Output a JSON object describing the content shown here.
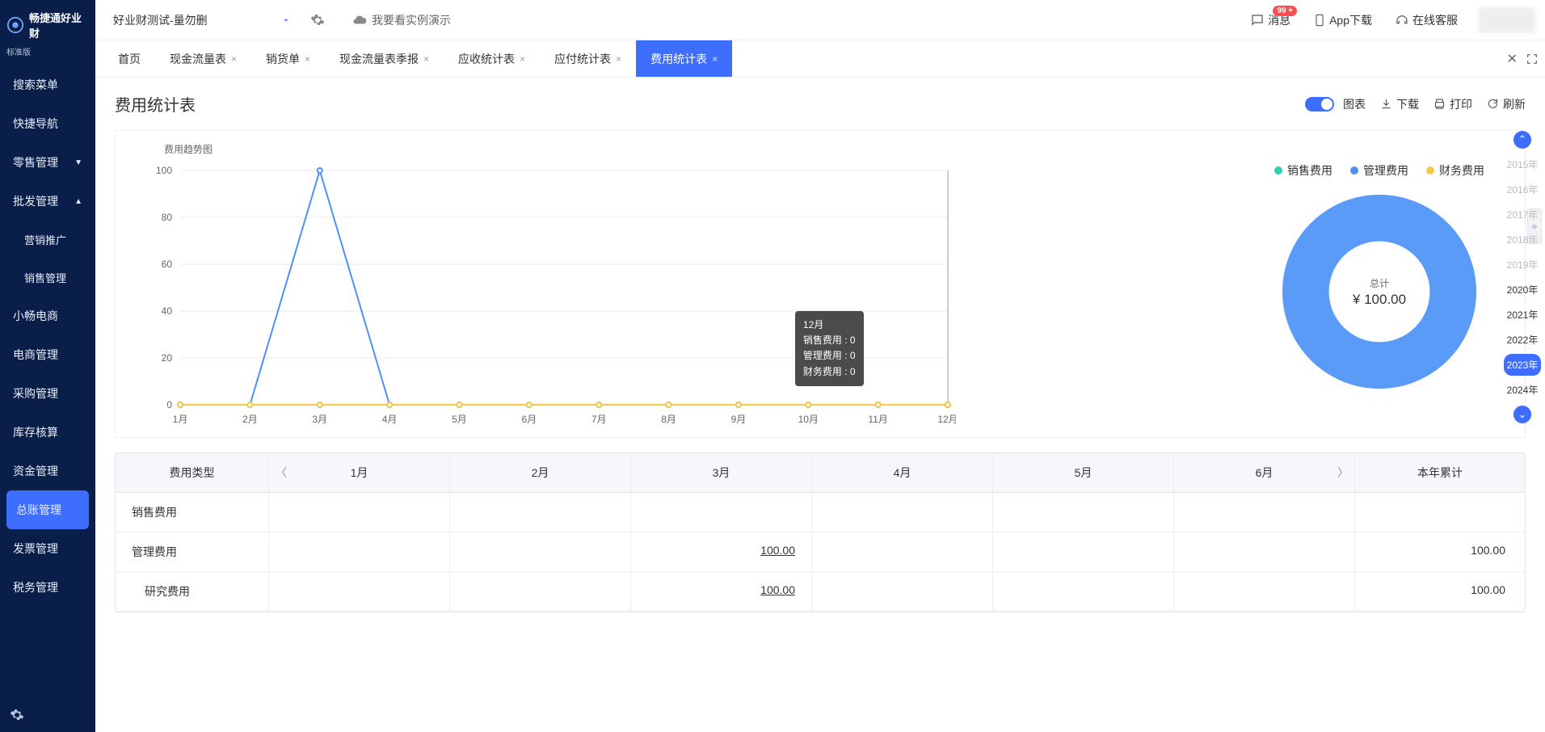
{
  "brand": {
    "name": "畅捷通好业财",
    "edition": "标准版"
  },
  "sidebar": {
    "items": [
      {
        "label": "搜索菜单"
      },
      {
        "label": "快捷导航"
      },
      {
        "label": "零售管理",
        "arrow": "▼"
      },
      {
        "label": "批发管理",
        "arrow": "▲"
      },
      {
        "label": "营销推广",
        "indent": true
      },
      {
        "label": "销售管理",
        "indent": true
      },
      {
        "label": "小畅电商"
      },
      {
        "label": "电商管理"
      },
      {
        "label": "采购管理"
      },
      {
        "label": "库存核算"
      },
      {
        "label": "资金管理"
      },
      {
        "label": "总账管理",
        "active": true
      },
      {
        "label": "发票管理"
      },
      {
        "label": "税务管理"
      }
    ]
  },
  "topbar": {
    "org": "好业财测试-量勿删",
    "demo": "我要看实例演示",
    "actions": {
      "msg": "消息",
      "msg_badge": "99 +",
      "app": "App下载",
      "service": "在线客服"
    }
  },
  "tabs": [
    {
      "label": "首页",
      "closable": false
    },
    {
      "label": "现金流量表",
      "closable": true
    },
    {
      "label": "销货单",
      "closable": true
    },
    {
      "label": "现金流量表季报",
      "closable": true
    },
    {
      "label": "应收统计表",
      "closable": true
    },
    {
      "label": "应付统计表",
      "closable": true
    },
    {
      "label": "费用统计表",
      "closable": true,
      "active": true
    }
  ],
  "page": {
    "title": "费用统计表",
    "actions": {
      "chart": "图表",
      "download": "下载",
      "print": "打印",
      "refresh": "刷新"
    }
  },
  "chart": {
    "title": "费用趋势图",
    "legend": [
      {
        "label": "销售费用",
        "color": "#2ecfb0"
      },
      {
        "label": "管理费用",
        "color": "#4f8ff7"
      },
      {
        "label": "财务费用",
        "color": "#f7c948"
      }
    ],
    "x_labels": [
      "1月",
      "2月",
      "3月",
      "4月",
      "5月",
      "6月",
      "7月",
      "8月",
      "9月",
      "10月",
      "11月",
      "12月"
    ],
    "y_ticks": [
      0,
      20,
      40,
      60,
      80,
      100
    ],
    "ylim": [
      0,
      100
    ],
    "series": {
      "sales": [
        0,
        0,
        0,
        0,
        0,
        0,
        0,
        0,
        0,
        0,
        0,
        0
      ],
      "admin": [
        0,
        0,
        100,
        0,
        0,
        0,
        0,
        0,
        0,
        0,
        0,
        0
      ],
      "finance": [
        0,
        0,
        0,
        0,
        0,
        0,
        0,
        0,
        0,
        0,
        0,
        0
      ]
    },
    "grid_color": "#e8e8e8",
    "axis_color": "#cfcfcf",
    "marker_radius": 3,
    "highlight_line_color": "#9aa0a6",
    "highlight_index": 11,
    "tooltip": {
      "title": "12月",
      "rows": [
        "销售费用 : 0",
        "管理费用 : 0",
        "财务费用 : 0"
      ]
    },
    "donut": {
      "center_label": "总计",
      "center_value": "¥ 100.00",
      "color": "#5b9bf8",
      "inner_ratio": 0.52
    }
  },
  "table": {
    "type_header": "费用类型",
    "months": [
      "1月",
      "2月",
      "3月",
      "4月",
      "5月",
      "6月"
    ],
    "total_header": "本年累计",
    "rows": [
      {
        "label": "销售费用",
        "cells": [
          "",
          "",
          "",
          "",
          "",
          ""
        ],
        "total": ""
      },
      {
        "label": "管理费用",
        "cells": [
          "",
          "",
          "100.00",
          "",
          "",
          ""
        ],
        "total": "100.00",
        "link": true
      },
      {
        "label": "研究费用",
        "cells": [
          "",
          "",
          "100.00",
          "",
          "",
          ""
        ],
        "total": "100.00",
        "link": true,
        "indent": true
      }
    ]
  },
  "years": {
    "list": [
      "2015年",
      "2016年",
      "2017年",
      "2018年",
      "2019年",
      "2020年",
      "2021年",
      "2022年",
      "2023年",
      "2024年"
    ],
    "enabled_from": 5,
    "current": "2023年"
  }
}
